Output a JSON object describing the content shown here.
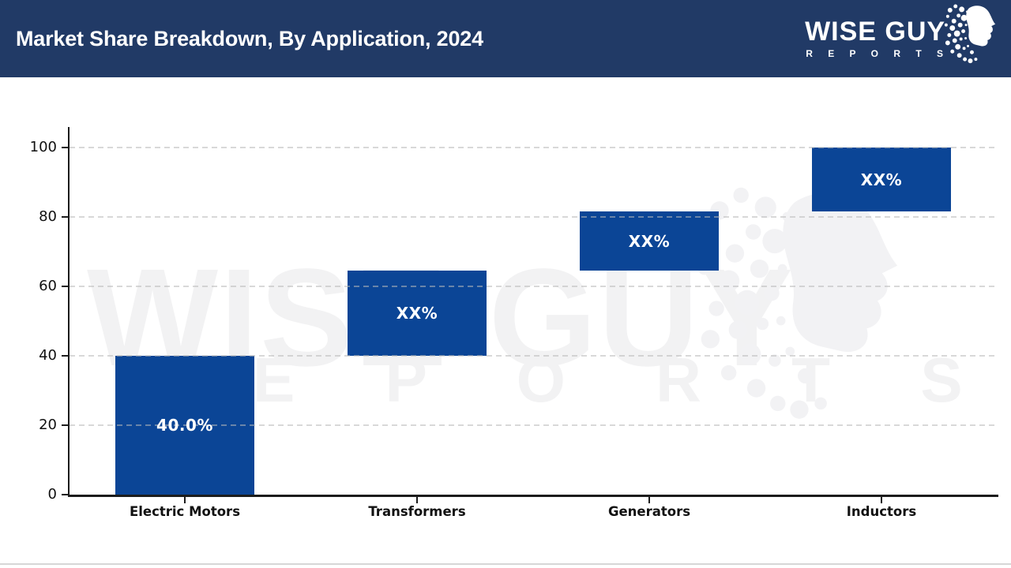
{
  "header": {
    "title": "Market Share Breakdown, By Application, 2024",
    "brand": {
      "name": "WISE GUY",
      "sub": "R E P O R T S"
    }
  },
  "watermark": {
    "line1": "WISE GUY",
    "line2": "R E P O R T S"
  },
  "chart_data": {
    "type": "bar",
    "subtype": "waterfall-floating-bars",
    "title": "Market Share Breakdown, By Application, 2024",
    "categories": [
      "Electric Motors",
      "Transformers",
      "Generators",
      "Inductors"
    ],
    "series": [
      {
        "name": "Electric Motors",
        "start": 0,
        "end": 40,
        "label": "40.0%"
      },
      {
        "name": "Transformers",
        "start": 40,
        "end": 64.5,
        "label": "XX%"
      },
      {
        "name": "Generators",
        "start": 64.5,
        "end": 81.5,
        "label": "XX%"
      },
      {
        "name": "Inductors",
        "start": 81.5,
        "end": 100,
        "label": "XX%"
      }
    ],
    "xlabel": "",
    "ylabel": "",
    "ylim": [
      0,
      100
    ],
    "yticks": [
      0,
      20,
      40,
      60,
      80,
      100
    ],
    "grid": "horizontal dashed",
    "legend": "none",
    "bar_color": "#0b4596",
    "bar_label_color": "#ffffff",
    "axis_color": "#1c1c1c"
  }
}
